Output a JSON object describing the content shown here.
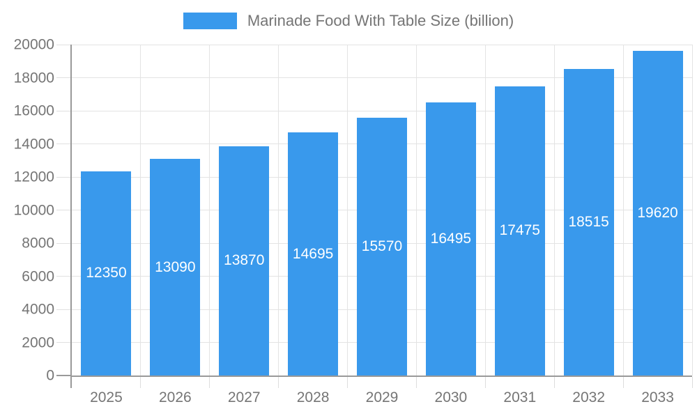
{
  "legend": {
    "label": "Marinade Food With Table Size (billion)",
    "swatch_color": "#3999EC"
  },
  "chart_data": {
    "type": "bar",
    "title": "Marinade Food With Table Size (billion)",
    "series_name": "Marinade Food With Table Size (billion)",
    "categories": [
      "2025",
      "2026",
      "2027",
      "2028",
      "2029",
      "2030",
      "2031",
      "2032",
      "2033"
    ],
    "values": [
      12350,
      13090,
      13870,
      14695,
      15570,
      16495,
      17475,
      18515,
      19620
    ],
    "xlabel": "",
    "ylabel": "",
    "ylim": [
      0,
      20000
    ],
    "yticks": [
      0,
      2000,
      4000,
      6000,
      8000,
      10000,
      12000,
      14000,
      16000,
      18000,
      20000
    ],
    "grid": true,
    "legend_position": "top-center",
    "bar_label_position": "inside-middle",
    "bar_color": "#3999EC",
    "bar_label_color": "#FFFFFF",
    "axis_text_color": "#757575",
    "grid_color": "#E3E3E3",
    "axis_line_color": "#999999"
  }
}
